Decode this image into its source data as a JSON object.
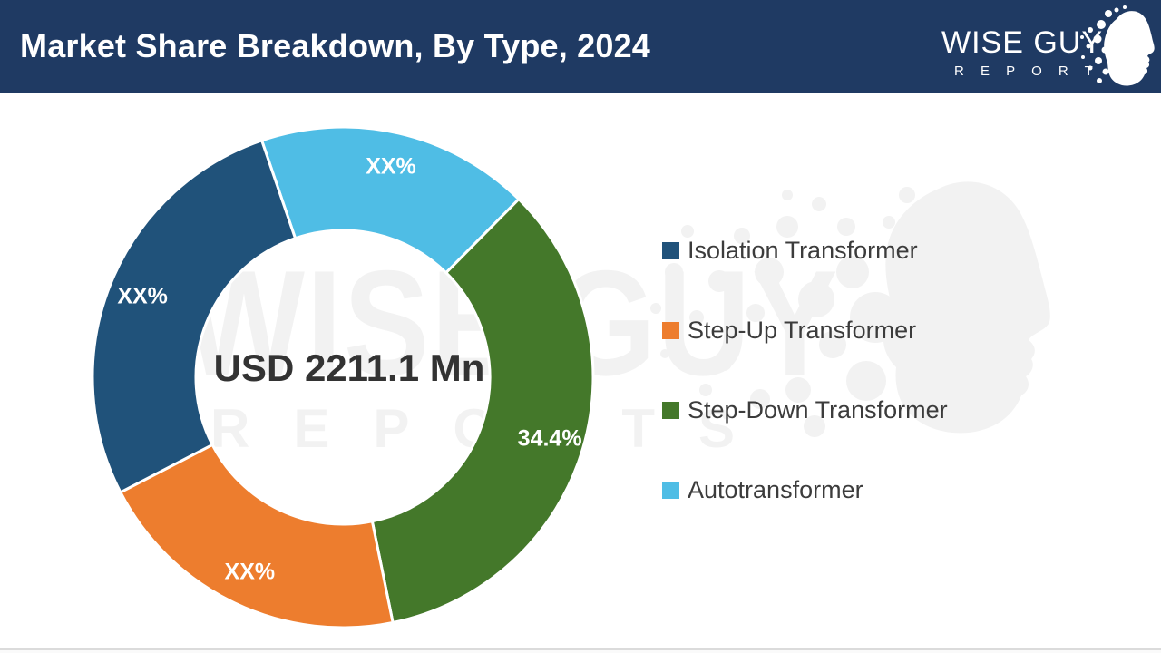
{
  "header": {
    "title": "Market Share Breakdown, By Type, 2024",
    "logo": {
      "line1": "WISE GUY",
      "line2": "R E P O R T S"
    }
  },
  "watermark": {
    "line1": "WISE GUY",
    "line2": "REPORTS"
  },
  "colors": {
    "header_bg": "#1F3A63",
    "isolation_blue": "#20527A",
    "step_up_orange": "#ED7D2E",
    "step_down_green": "#44782A",
    "auto_light_blue": "#4FBDE5",
    "center_text": "#333333",
    "watermark_gray": "#F2F2F2"
  },
  "chart_data": {
    "type": "pie",
    "subtype": "donut",
    "title": "Market Share Breakdown, By Type, 2024",
    "center_total": "USD 2211.1 Mn",
    "units": "percent share",
    "start_angle_deg": 108.9,
    "direction": "clockwise",
    "legend_position": "right",
    "slices": [
      {
        "name": "Autotransformer",
        "label": "XX%",
        "pct": 17.65,
        "color": "#4FBDE5"
      },
      {
        "name": "Step-Down Transformer",
        "label": "34.4%",
        "pct": 34.4,
        "color": "#44782A"
      },
      {
        "name": "Step-Up Transformer",
        "label": "XX%",
        "pct": 20.6,
        "color": "#ED7D2E"
      },
      {
        "name": "Isolation Transformer",
        "label": "XX%",
        "pct": 27.35,
        "color": "#20527A"
      }
    ],
    "legend": [
      {
        "label": "Isolation Transformer",
        "color": "#20527A"
      },
      {
        "label": "Step-Up Transformer",
        "color": "#ED7D2E"
      },
      {
        "label": "Step-Down Transformer",
        "color": "#44782A"
      },
      {
        "label": "Autotransformer",
        "color": "#4FBDE5"
      }
    ]
  }
}
